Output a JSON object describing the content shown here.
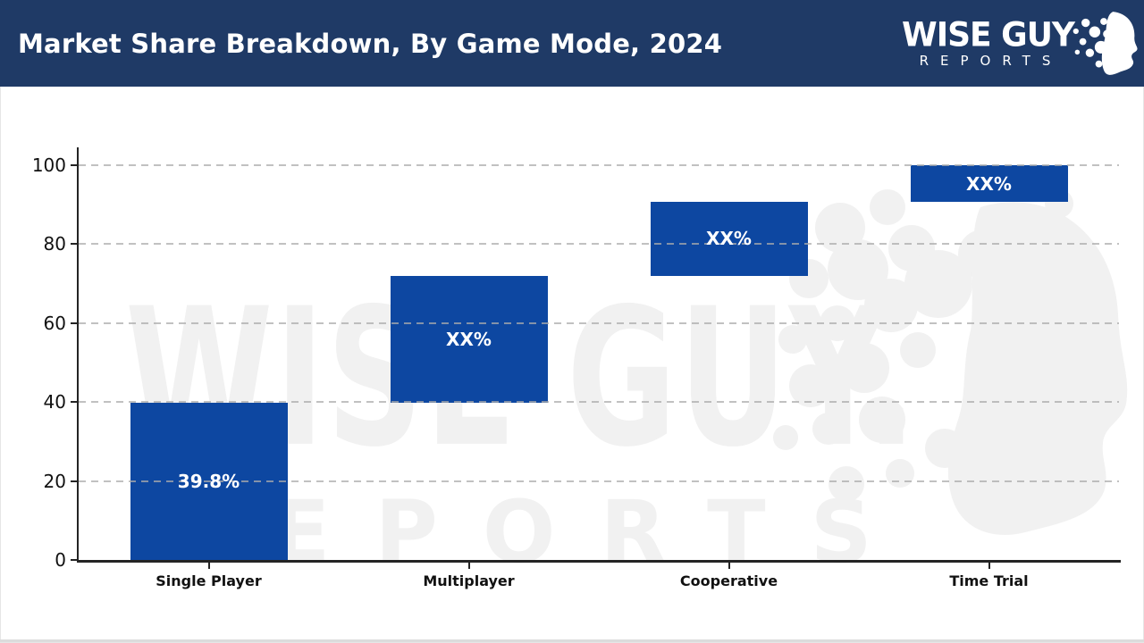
{
  "header": {
    "title": "Market Share Breakdown, By Game Mode, 2024",
    "logo": {
      "line1": "WISE GUY",
      "line2": "REPORTS"
    }
  },
  "watermark": {
    "line1": "WISE GUY.",
    "line2": "REPORTS"
  },
  "chart_data": {
    "type": "bar",
    "variant": "waterfall",
    "title": "Market Share Breakdown, By Game Mode, 2024",
    "categories": [
      "Single Player",
      "Multiplayer",
      "Cooperative",
      "Time Trial"
    ],
    "segments": [
      {
        "category": "Single Player",
        "start": 0,
        "end": 39.8,
        "label": "39.8%"
      },
      {
        "category": "Multiplayer",
        "start": 39.8,
        "end": 72,
        "label": "XX%"
      },
      {
        "category": "Cooperative",
        "start": 72,
        "end": 90.7,
        "label": "XX%"
      },
      {
        "category": "Time Trial",
        "start": 90.7,
        "end": 100,
        "label": "XX%"
      }
    ],
    "segment_sizes_pct": [
      39.8,
      32.2,
      18.7,
      9.3
    ],
    "y_ticks": [
      0,
      20,
      40,
      60,
      80,
      100
    ],
    "ylim": [
      0,
      100
    ],
    "xlabel": "",
    "ylabel": "",
    "grid": "horizontal-dashed",
    "legend": "none",
    "bar_color": "#0d47a1",
    "bar_label_color": "#ffffff"
  },
  "colors": {
    "header_bg": "#1f3a66",
    "axis": "#242424",
    "grid": "#acacac",
    "watermark": "#f1f1f1",
    "footer_line": "#dcdcdc",
    "background": "#ffffff"
  }
}
